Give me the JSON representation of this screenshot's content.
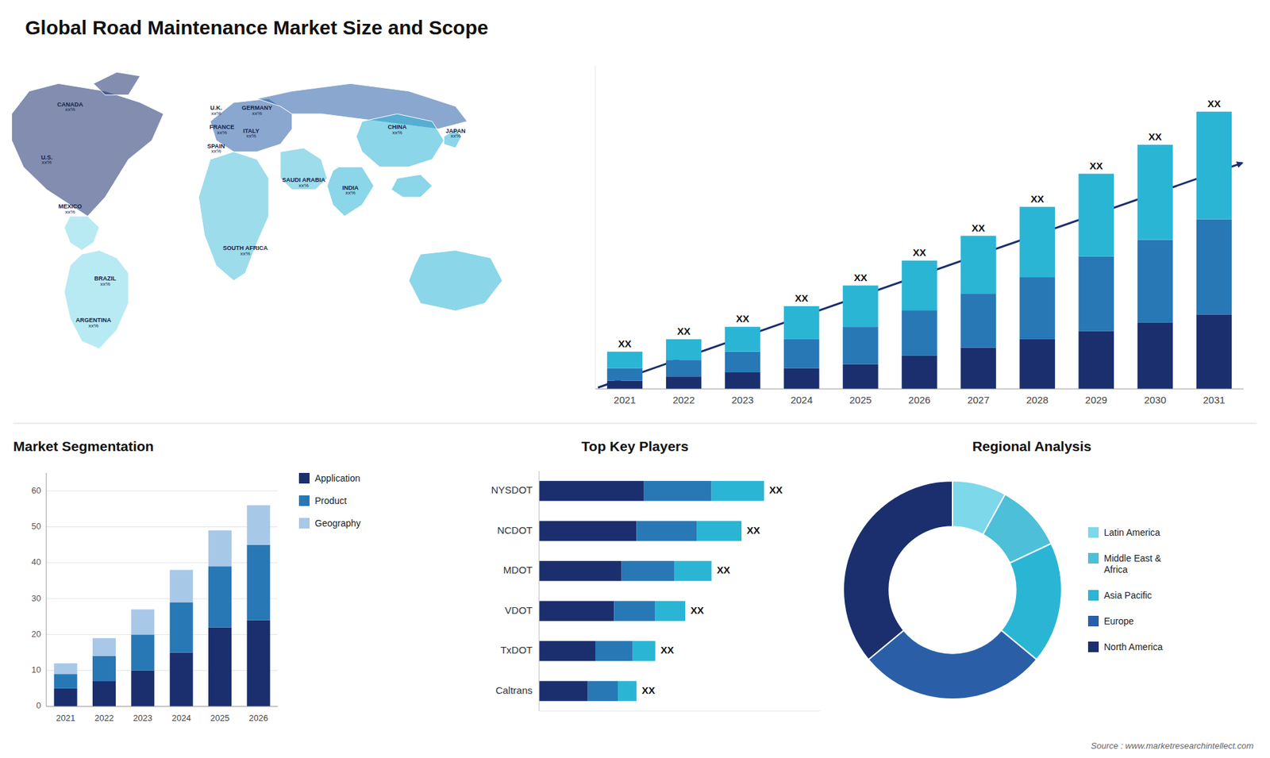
{
  "chart_data": [
    {
      "type": "bar",
      "title": "Global Road Maintenance Market Size and Scope",
      "stacked": true,
      "categories": [
        "2021",
        "2022",
        "2023",
        "2024",
        "2025",
        "2026",
        "2027",
        "2028",
        "2029",
        "2030",
        "2031"
      ],
      "series": [
        {
          "color": "#1b2f6e",
          "values": [
            2,
            3,
            4,
            5,
            6,
            8,
            10,
            12,
            14,
            16,
            18
          ]
        },
        {
          "color": "#2778b5",
          "values": [
            3,
            4,
            5,
            7,
            9,
            11,
            13,
            15,
            18,
            20,
            23
          ]
        },
        {
          "color": "#2bb5d5",
          "values": [
            4,
            5,
            6,
            8,
            10,
            12,
            14,
            17,
            20,
            23,
            26
          ]
        }
      ],
      "ylim": [
        0,
        78
      ],
      "tick_labels": "x",
      "data_labels": true,
      "value_labels": [
        "XX",
        "XX",
        "XX",
        "XX",
        "XX",
        "XX",
        "XX",
        "XX",
        "XX",
        "XX",
        "XX"
      ]
    },
    {
      "type": "map",
      "categories": [
        "CANADA",
        "U.S.",
        "MEXICO",
        "BRAZIL",
        "ARGENTINA",
        "U.K.",
        "FRANCE",
        "SPAIN",
        "GERMANY",
        "ITALY",
        "SAUDI ARABIA",
        "SOUTH AFRICA",
        "CHINA",
        "INDIA",
        "JAPAN"
      ],
      "annotations": [
        "xx%",
        "xx%",
        "xx%",
        "xx%",
        "xx%",
        "xx%",
        "xx%",
        "xx%",
        "xx%",
        "xx%",
        "xx%",
        "xx%",
        "xx%",
        "xx%",
        "xx%"
      ]
    },
    {
      "type": "bar",
      "title": "Market Segmentation",
      "stacked": true,
      "categories": [
        "2021",
        "2022",
        "2023",
        "2024",
        "2025",
        "2026"
      ],
      "series": [
        {
          "name": "Application",
          "color": "#1b2f6e",
          "values": [
            5,
            7,
            10,
            15,
            22,
            24
          ]
        },
        {
          "name": "Product",
          "color": "#2778b5",
          "values": [
            4,
            7,
            10,
            14,
            17,
            21
          ]
        },
        {
          "name": "Geography",
          "color": "#a8c8e8",
          "values": [
            3,
            5,
            7,
            9,
            10,
            11
          ]
        }
      ],
      "ylim": [
        0,
        65
      ],
      "yticks": [
        0,
        10,
        20,
        30,
        40,
        50,
        60
      ],
      "grid": true,
      "legend": "right"
    },
    {
      "type": "bar",
      "orientation": "horizontal",
      "title": "Top Key Players",
      "stacked": true,
      "categories": [
        "NYSDOT",
        "NCDOT",
        "MDOT",
        "VDOT",
        "TxDOT",
        "Caltrans"
      ],
      "series": [
        {
          "color": "#1b2f6e",
          "values": [
            28,
            26,
            22,
            20,
            15,
            13
          ]
        },
        {
          "color": "#2778b5",
          "values": [
            18,
            16,
            14,
            11,
            10,
            8
          ]
        },
        {
          "color": "#2bb5d5",
          "values": [
            14,
            12,
            10,
            8,
            6,
            5
          ]
        }
      ],
      "xlim": [
        0,
        75
      ],
      "tick_labels": "y",
      "data_labels": true,
      "value_labels": [
        "XX",
        "XX",
        "XX",
        "XX",
        "XX",
        "XX"
      ]
    },
    {
      "type": "donut",
      "title": "Regional Analysis",
      "categories": [
        "Latin America",
        "Middle East &\nAfrica",
        "Asia Pacific",
        "Europe",
        "North America"
      ],
      "values": [
        8,
        10,
        18,
        28,
        36
      ],
      "colors": [
        "#7dd8ea",
        "#4dbfd8",
        "#2bb5d5",
        "#2a5fa8",
        "#1b2f6e"
      ],
      "legend": "right",
      "annotations": [
        "Source : www.marketresearchintellect.com"
      ]
    }
  ]
}
